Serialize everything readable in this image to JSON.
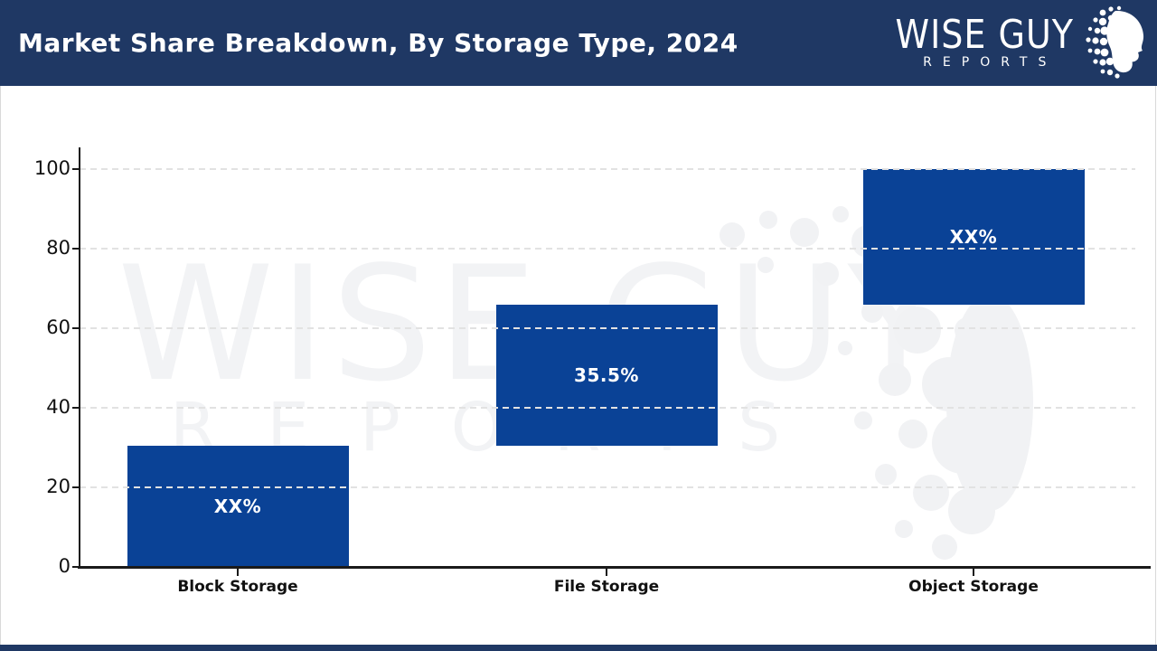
{
  "header": {
    "title": "Market Share Breakdown, By Storage Type, 2024",
    "logo": {
      "line1": "WISE GUY",
      "line2": "REPORTS"
    }
  },
  "watermark": {
    "line1": "WISE GUY",
    "line2": "REPORTS"
  },
  "chart_data": {
    "type": "bar",
    "subtype": "floating-segment (waterfall-style) columns",
    "title": "Market Share Breakdown, By Storage Type, 2024",
    "categories": [
      "Block Storage",
      "File Storage",
      "Object Storage"
    ],
    "bars": [
      {
        "category": "Block Storage",
        "start": 0,
        "end": 30.5,
        "label": "XX%"
      },
      {
        "category": "File Storage",
        "start": 30.5,
        "end": 66,
        "label": "35.5%"
      },
      {
        "category": "Object Storage",
        "start": 66,
        "end": 100,
        "label": "XX%"
      }
    ],
    "xlabel": "",
    "ylabel": "",
    "ylim": [
      0,
      105
    ],
    "yticks": [
      0,
      20,
      40,
      60,
      80,
      100
    ],
    "grid": "horizontal dashed, drawn over bars",
    "legend": "none",
    "colors": {
      "bar": "#0a4296",
      "bar_label": "#ffffff",
      "grid": "#e2e2e2",
      "axis": "#1a1a1a",
      "tick_text": "#111111",
      "header_bg": "#1f3864",
      "header_text": "#ffffff",
      "watermark": "#f2f3f5"
    }
  }
}
